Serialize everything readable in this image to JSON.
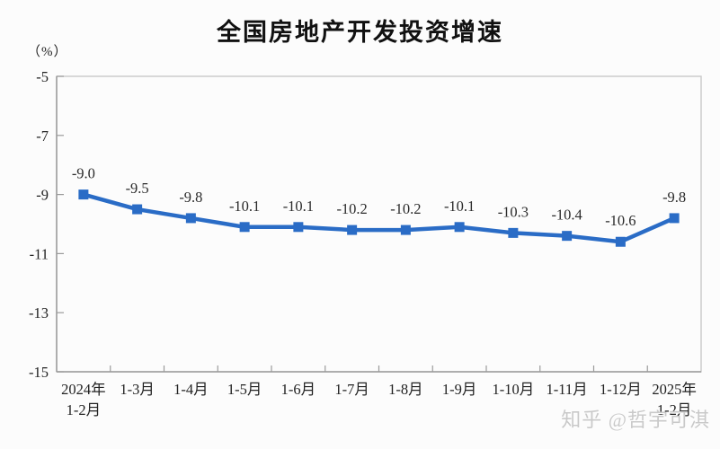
{
  "page": {
    "watermark": "知乎 @哲宇可淇"
  },
  "chart_data": {
    "type": "line",
    "title": "全国房地产开发投资增速",
    "ylabel": "（%）",
    "categories": [
      "2024年\n1-2月",
      "1-3月",
      "1-4月",
      "1-5月",
      "1-6月",
      "1-7月",
      "1-8月",
      "1-9月",
      "1-10月",
      "1-11月",
      "1-12月",
      "2025年\n1-2月"
    ],
    "values": [
      -9.0,
      -9.5,
      -9.8,
      -10.1,
      -10.1,
      -10.2,
      -10.2,
      -10.1,
      -10.3,
      -10.4,
      -10.6,
      -9.8
    ],
    "data_labels": [
      "-9.0",
      "-9.5",
      "-9.8",
      "-10.1",
      "-10.1",
      "-10.2",
      "-10.2",
      "-10.1",
      "-10.3",
      "-10.4",
      "-10.6",
      "-9.8"
    ],
    "ylim": [
      -15,
      -5
    ],
    "yticks": [
      -5,
      -7,
      -9,
      -11,
      -13,
      -15
    ],
    "line_color": "#2a6cc6",
    "axis_color": "#9b9b9b",
    "border_color": "#c9c9c9",
    "grid": false,
    "legend_position": "none"
  }
}
